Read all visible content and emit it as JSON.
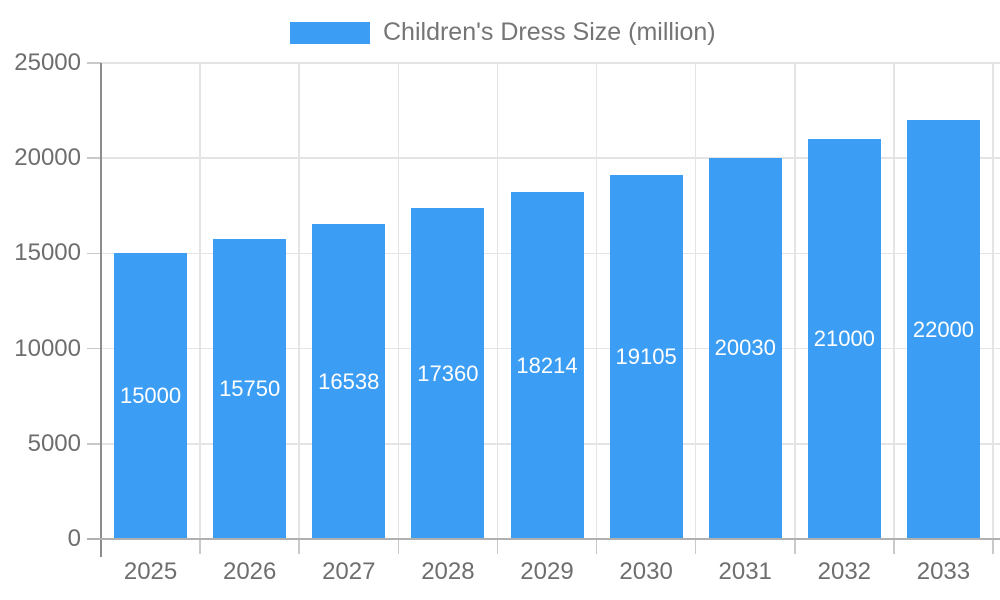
{
  "legend": {
    "label": "Children's Dress Size (million)"
  },
  "chart_data": {
    "type": "bar",
    "title": "Children's Dress Size (million)",
    "series_name": "Children's Dress Size (million)",
    "categories": [
      "2025",
      "2026",
      "2027",
      "2028",
      "2029",
      "2030",
      "2031",
      "2032",
      "2033"
    ],
    "values": [
      15000,
      15750,
      16538,
      17360,
      18214,
      19105,
      20030,
      21000,
      22000
    ],
    "xlabel": "",
    "ylabel": "",
    "ylim": [
      0,
      25000
    ],
    "yticks": [
      0,
      5000,
      10000,
      15000,
      20000,
      25000
    ],
    "legend_position": "top-center",
    "grid": true,
    "value_labels": "inside-center",
    "colors": {
      "bar": "#3b9df3",
      "value_label": "#ffffff",
      "axis_text": "#6e6e6e",
      "legend_text": "#757575",
      "gridline": "#e4e4e4",
      "tick": "#c9c9c9",
      "y_axis_line": "#8c8c8c",
      "x_axis_line": "#b0b0b0",
      "background": "#ffffff"
    }
  }
}
